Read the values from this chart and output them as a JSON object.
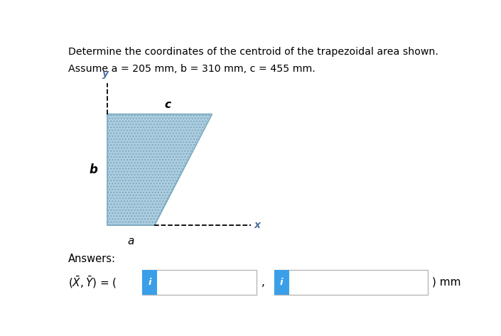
{
  "title_line1": "Determine the coordinates of the centroid of the trapezoidal area shown.",
  "title_line2": "Assume a = 205 mm, b = 310 mm, c = 455 mm.",
  "a": 205,
  "b": 310,
  "c": 455,
  "trap_fill_color": "#aecde0",
  "trap_edge_color": "#7aaabf",
  "trap_dot_color": "#c8a080",
  "answers_label": "Answers:",
  "mm_label": ") mm",
  "info_box_color": "#3b9fe8",
  "bg_color": "#ffffff",
  "label_a": "a",
  "label_b": "b",
  "label_c": "c",
  "label_x": "x",
  "label_y": "y",
  "fig_width": 7.05,
  "fig_height": 4.73,
  "dpi": 100
}
